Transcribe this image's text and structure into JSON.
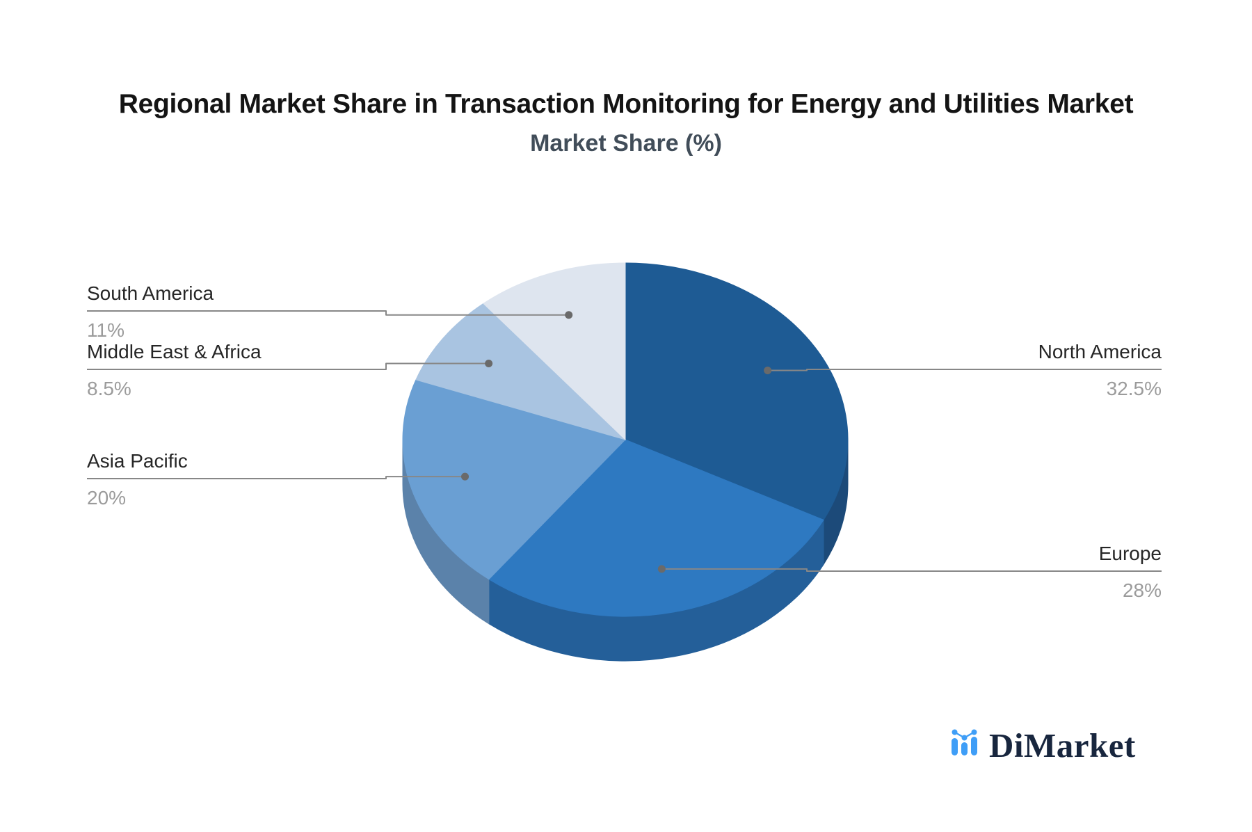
{
  "chart_data": {
    "type": "pie",
    "style": "3d",
    "title": "Regional Market Share in Transaction Monitoring for Energy and Utilities Market",
    "subtitle": "Market Share (%)",
    "unit": "%",
    "labels": [
      "North America",
      "Europe",
      "Asia Pacific",
      "Middle East & Africa",
      "South America"
    ],
    "values": [
      32.5,
      28,
      20,
      8.5,
      11
    ],
    "value_labels": [
      "32.5%",
      "28%",
      "20%",
      "8.5%",
      "11%"
    ],
    "colors": [
      "#1e5b94",
      "#2e79c1",
      "#6a9fd3",
      "#a9c4e1",
      "#dee5ef"
    ],
    "side_colors": [
      "#1c4a79",
      "#245f99",
      "#5b82aa",
      "#8aa6c2",
      "#b9c4d6"
    ],
    "label_sides": [
      "right",
      "right",
      "left",
      "left",
      "left"
    ],
    "start_angle_deg": 0,
    "direction": "clockwise",
    "legend": "none",
    "leader_line_color": "#878787",
    "dot_color": "#6a6a6a",
    "label_color": "#262626",
    "value_color": "#9b9b9b",
    "title_color": "#141414",
    "subtitle_color": "#414d59",
    "background": "#ffffff"
  },
  "branding": {
    "logo_text": "DiMarket",
    "logo_text_color": "#18263e",
    "icon_color": "#3f9ef7"
  }
}
